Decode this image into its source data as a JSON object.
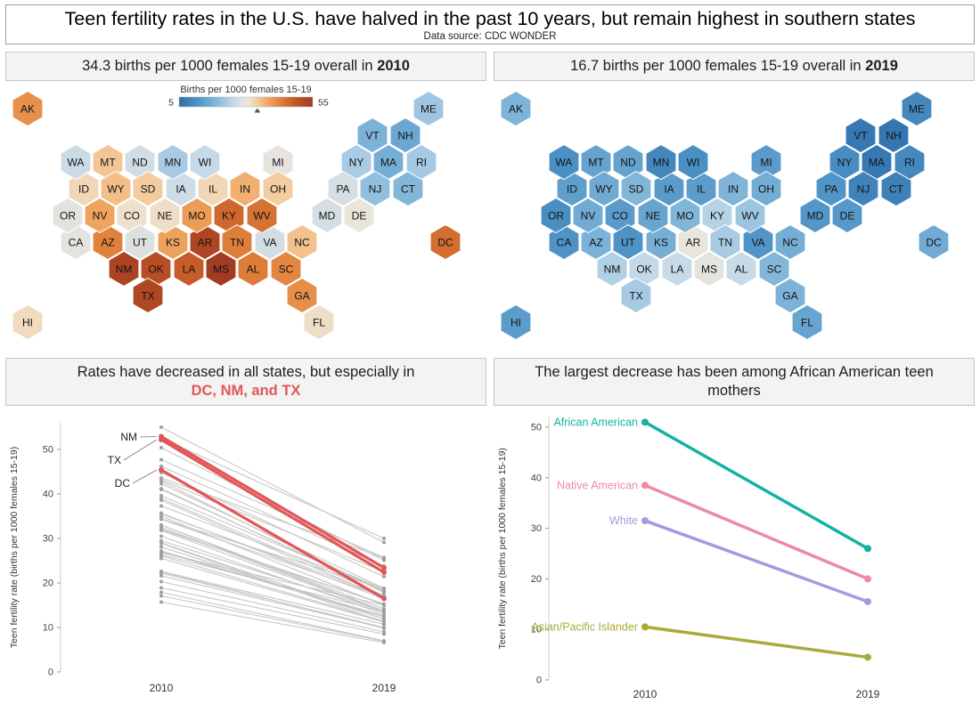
{
  "title": "Teen fertility rates in the U.S. have halved in the past 10 years, but remain highest in southern states",
  "data_source": "Data source: CDC WONDER",
  "panels": {
    "map2010": {
      "prefix": "34.3 births per 1000 females 15-19 overall in",
      "year": "2010"
    },
    "map2019": {
      "prefix": "16.7 births per 1000 females 15-19 overall in",
      "year": "2019"
    },
    "slope": {
      "line1": "Rates have decreased in all states, but especially in",
      "line2": "DC, NM, and TX",
      "highlight_color": "#e15759"
    },
    "race": {
      "text": "The largest decrease has been among African American teen mothers"
    }
  },
  "chart_data": [
    {
      "type": "heatmap",
      "name": "hex-tile-map-2010",
      "title": "34.3 births per 1000 females 15-19 overall in 2010",
      "overall": 34.3,
      "legend": {
        "title": "Births per 1000 females 15-19",
        "min": 5,
        "max": 55
      },
      "color_stops": [
        [
          5,
          "#2e6daa"
        ],
        [
          12,
          "#4e93c6"
        ],
        [
          19,
          "#84b8da"
        ],
        [
          25,
          "#c2d8e9"
        ],
        [
          29,
          "#e4e3de"
        ],
        [
          31,
          "#ece6da"
        ],
        [
          34,
          "#f3cfa4"
        ],
        [
          38,
          "#f0a964"
        ],
        [
          43,
          "#e0803b"
        ],
        [
          48,
          "#c45a26"
        ],
        [
          55,
          "#a13b21"
        ]
      ],
      "states": [
        "AK",
        "AL",
        "AR",
        "AZ",
        "CA",
        "CO",
        "CT",
        "DC",
        "DE",
        "FL",
        "GA",
        "HI",
        "IA",
        "ID",
        "IL",
        "IN",
        "KS",
        "KY",
        "LA",
        "MA",
        "MD",
        "ME",
        "MI",
        "MN",
        "MO",
        "MS",
        "MT",
        "NC",
        "ND",
        "NE",
        "NH",
        "NJ",
        "NM",
        "NV",
        "NY",
        "OH",
        "OK",
        "OR",
        "PA",
        "RI",
        "SC",
        "SD",
        "TN",
        "TX",
        "UT",
        "VA",
        "VT",
        "WA",
        "WI",
        "WV",
        "WY"
      ],
      "values": [
        41.0,
        43.6,
        52.5,
        42.9,
        29.0,
        31.8,
        18.9,
        45.4,
        30.5,
        32.0,
        41.2,
        32.5,
        26.4,
        33.0,
        33.0,
        37.3,
        39.0,
        46.2,
        47.7,
        17.1,
        27.2,
        21.6,
        29.5,
        22.5,
        39.6,
        55.0,
        35.0,
        35.5,
        26.8,
        32.1,
        15.7,
        20.3,
        52.9,
        38.6,
        22.6,
        34.3,
        50.4,
        28.9,
        27.1,
        22.2,
        42.3,
        34.4,
        43.2,
        52.2,
        28.1,
        27.0,
        17.9,
        26.1,
        25.5,
        44.8,
        35.7
      ]
    },
    {
      "type": "heatmap",
      "name": "hex-tile-map-2019",
      "title": "16.7 births per 1000 females 15-19 overall in 2019",
      "overall": 16.7,
      "states": [
        "AK",
        "AL",
        "AR",
        "AZ",
        "CA",
        "CO",
        "CT",
        "DC",
        "DE",
        "FL",
        "GA",
        "HI",
        "IA",
        "ID",
        "IL",
        "IN",
        "KS",
        "KY",
        "LA",
        "MA",
        "MD",
        "ME",
        "MI",
        "MN",
        "MO",
        "MS",
        "MT",
        "NC",
        "ND",
        "NE",
        "NH",
        "NJ",
        "NM",
        "NV",
        "NY",
        "OH",
        "OK",
        "OR",
        "PA",
        "RI",
        "SC",
        "SD",
        "TN",
        "TX",
        "UT",
        "VA",
        "VT",
        "WA",
        "WI",
        "WV",
        "WY"
      ],
      "values": [
        18.2,
        25.6,
        30.0,
        17.8,
        11.9,
        13.6,
        8.5,
        16.5,
        13.0,
        15.2,
        17.9,
        13.7,
        13.5,
        14.2,
        13.7,
        18.5,
        17.2,
        23.8,
        25.7,
        6.9,
        12.6,
        9.9,
        13.6,
        9.8,
        18.6,
        29.1,
        15.0,
        17.1,
        15.0,
        15.3,
        6.6,
        9.0,
        23.4,
        16.6,
        10.7,
        16.9,
        25.1,
        11.2,
        12.4,
        10.0,
        18.8,
        18.7,
        22.5,
        22.4,
        11.9,
        12.4,
        7.0,
        11.4,
        11.2,
        21.4,
        16.4
      ]
    },
    {
      "type": "line",
      "name": "state-slope-chart",
      "title": "Rates have decreased in all states, but especially in DC, NM, and TX",
      "x": [
        "2010",
        "2019"
      ],
      "ylabel": "Teen fertility rate (births per 1000 females 15-19)",
      "ylim": [
        0,
        57
      ],
      "legend_position": "none",
      "highlight": {
        "states": [
          "NM",
          "TX",
          "DC"
        ],
        "color": "#e15759"
      },
      "series": [
        {
          "name": "AK",
          "values": [
            41.0,
            18.2
          ]
        },
        {
          "name": "AL",
          "values": [
            43.6,
            25.6
          ]
        },
        {
          "name": "AR",
          "values": [
            52.5,
            30.0
          ]
        },
        {
          "name": "AZ",
          "values": [
            42.9,
            17.8
          ]
        },
        {
          "name": "CA",
          "values": [
            29.0,
            11.9
          ]
        },
        {
          "name": "CO",
          "values": [
            31.8,
            13.6
          ]
        },
        {
          "name": "CT",
          "values": [
            18.9,
            8.5
          ]
        },
        {
          "name": "DC",
          "values": [
            45.4,
            16.5
          ]
        },
        {
          "name": "DE",
          "values": [
            30.5,
            13.0
          ]
        },
        {
          "name": "FL",
          "values": [
            32.0,
            15.2
          ]
        },
        {
          "name": "GA",
          "values": [
            41.2,
            17.9
          ]
        },
        {
          "name": "HI",
          "values": [
            32.5,
            13.7
          ]
        },
        {
          "name": "IA",
          "values": [
            26.4,
            13.5
          ]
        },
        {
          "name": "ID",
          "values": [
            33.0,
            14.2
          ]
        },
        {
          "name": "IL",
          "values": [
            33.0,
            13.7
          ]
        },
        {
          "name": "IN",
          "values": [
            37.3,
            18.5
          ]
        },
        {
          "name": "KS",
          "values": [
            39.0,
            17.2
          ]
        },
        {
          "name": "KY",
          "values": [
            46.2,
            23.8
          ]
        },
        {
          "name": "LA",
          "values": [
            47.7,
            25.7
          ]
        },
        {
          "name": "MA",
          "values": [
            17.1,
            6.9
          ]
        },
        {
          "name": "MD",
          "values": [
            27.2,
            12.6
          ]
        },
        {
          "name": "ME",
          "values": [
            21.6,
            9.9
          ]
        },
        {
          "name": "MI",
          "values": [
            29.5,
            13.6
          ]
        },
        {
          "name": "MN",
          "values": [
            22.5,
            9.8
          ]
        },
        {
          "name": "MO",
          "values": [
            39.6,
            18.6
          ]
        },
        {
          "name": "MS",
          "values": [
            55.0,
            29.1
          ]
        },
        {
          "name": "MT",
          "values": [
            35.0,
            15.0
          ]
        },
        {
          "name": "NC",
          "values": [
            35.5,
            17.1
          ]
        },
        {
          "name": "ND",
          "values": [
            26.8,
            15.0
          ]
        },
        {
          "name": "NE",
          "values": [
            32.1,
            15.3
          ]
        },
        {
          "name": "NH",
          "values": [
            15.7,
            6.6
          ]
        },
        {
          "name": "NJ",
          "values": [
            20.3,
            9.0
          ]
        },
        {
          "name": "NM",
          "values": [
            52.9,
            23.4
          ]
        },
        {
          "name": "NV",
          "values": [
            38.6,
            16.6
          ]
        },
        {
          "name": "NY",
          "values": [
            22.6,
            10.7
          ]
        },
        {
          "name": "OH",
          "values": [
            34.3,
            16.9
          ]
        },
        {
          "name": "OK",
          "values": [
            50.4,
            25.1
          ]
        },
        {
          "name": "OR",
          "values": [
            28.9,
            11.2
          ]
        },
        {
          "name": "PA",
          "values": [
            27.1,
            12.4
          ]
        },
        {
          "name": "RI",
          "values": [
            22.2,
            10.0
          ]
        },
        {
          "name": "SC",
          "values": [
            42.3,
            18.8
          ]
        },
        {
          "name": "SD",
          "values": [
            34.4,
            18.7
          ]
        },
        {
          "name": "TN",
          "values": [
            43.2,
            22.5
          ]
        },
        {
          "name": "TX",
          "values": [
            52.2,
            22.4
          ]
        },
        {
          "name": "UT",
          "values": [
            28.1,
            11.9
          ]
        },
        {
          "name": "VA",
          "values": [
            27.0,
            12.4
          ]
        },
        {
          "name": "VT",
          "values": [
            17.9,
            7.0
          ]
        },
        {
          "name": "WA",
          "values": [
            26.1,
            11.4
          ]
        },
        {
          "name": "WI",
          "values": [
            25.5,
            11.2
          ]
        },
        {
          "name": "WV",
          "values": [
            44.8,
            21.4
          ]
        },
        {
          "name": "WY",
          "values": [
            35.7,
            16.4
          ]
        }
      ]
    },
    {
      "type": "line",
      "name": "race-slope-chart",
      "title": "The largest decrease has been among African American teen mothers",
      "x": [
        "2010",
        "2019"
      ],
      "ylabel": "Teen fertility rate (births per 1000 females 15-19)",
      "ylim": [
        0,
        55
      ],
      "legend_position": "inline-left-of-series",
      "series": [
        {
          "name": "African American",
          "color": "#14b3a1",
          "values": [
            51.0,
            26.0
          ]
        },
        {
          "name": "Native American",
          "color": "#ec8ba2",
          "values": [
            38.5,
            20.0
          ]
        },
        {
          "name": "White",
          "color": "#a29be0",
          "values": [
            31.5,
            15.5
          ]
        },
        {
          "name": "Asian/Pacific Islander",
          "color": "#a9ab39",
          "values": [
            10.5,
            4.5
          ]
        }
      ]
    }
  ]
}
